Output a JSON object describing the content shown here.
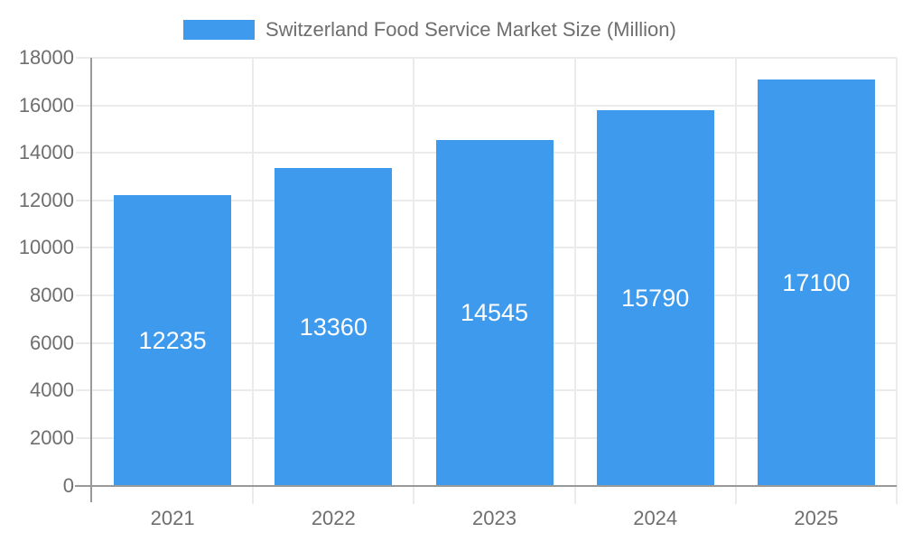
{
  "legend": {
    "label": "Switzerland Food Service Market Size (Million)"
  },
  "chart_data": {
    "type": "bar",
    "title": "Switzerland Food Service Market Size (Million)",
    "categories": [
      "2021",
      "2022",
      "2023",
      "2024",
      "2025"
    ],
    "values": [
      12235,
      13360,
      14545,
      15790,
      17100
    ],
    "xlabel": "",
    "ylabel": "",
    "ylim": [
      0,
      18000
    ],
    "y_ticks": [
      0,
      2000,
      4000,
      6000,
      8000,
      10000,
      12000,
      14000,
      16000,
      18000
    ],
    "grid": true,
    "legend_position": "top",
    "value_labels": "inside-center"
  },
  "colors": {
    "bar": "#3D9AEC",
    "grid": "#EBEBEB",
    "axis": "#999999",
    "text": "#6E6E6E",
    "value_text": "#FFFFFF",
    "background": "#FFFFFF"
  }
}
